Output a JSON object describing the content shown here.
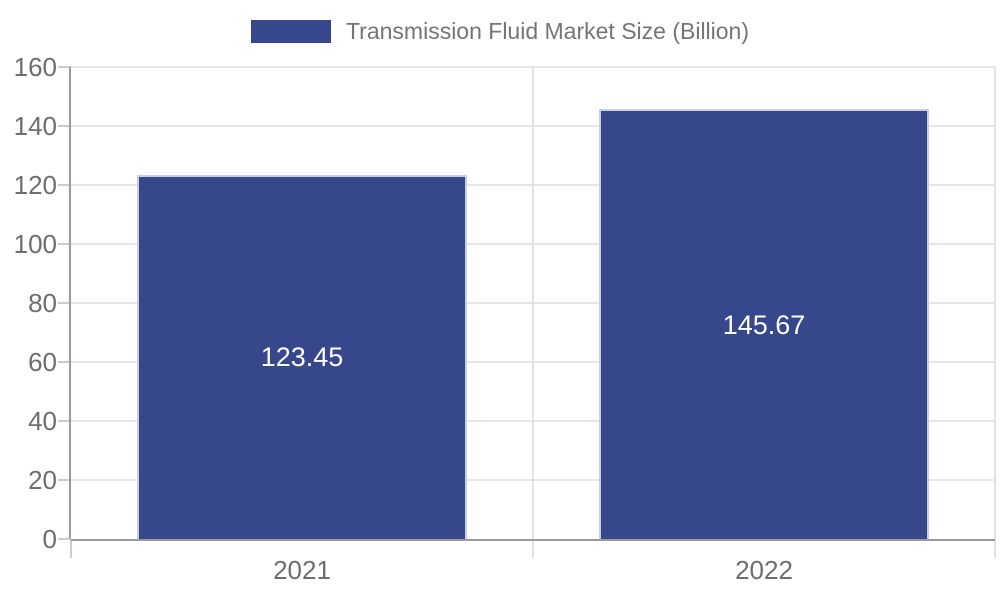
{
  "chart_data": {
    "type": "bar",
    "title": "Transmission Fluid Market Size (Billion)",
    "legend": {
      "label": "Transmission Fluid Market Size (Billion)",
      "position": "top"
    },
    "categories": [
      "2021",
      "2022"
    ],
    "series": [
      {
        "name": "Transmission Fluid Market Size (Billion)",
        "values": [
          123.45,
          145.67
        ]
      }
    ],
    "value_labels": [
      "123.45",
      "145.67"
    ],
    "xlabel": "",
    "ylabel": "",
    "ylim": [
      0,
      160
    ],
    "yticks": [
      0,
      20,
      40,
      60,
      80,
      100,
      120,
      140,
      160
    ],
    "ytick_labels": [
      "0",
      "20",
      "40",
      "60",
      "80",
      "100",
      "120",
      "140",
      "160"
    ],
    "grid": "horizontal",
    "bar_color": "#36478b",
    "value_label_color": "#ffffff"
  },
  "colors": {
    "bar": "#36478b",
    "bar_border": "#c9cfe0",
    "axis_line": "#9b9b9b",
    "gridline": "#e6e6e6",
    "boundary_line": "#e3e3e3",
    "tick_mark": "#c7ccd8",
    "tick_label_text": "#6e6e6e",
    "legend_text": "#757575",
    "background": "#ffffff"
  }
}
